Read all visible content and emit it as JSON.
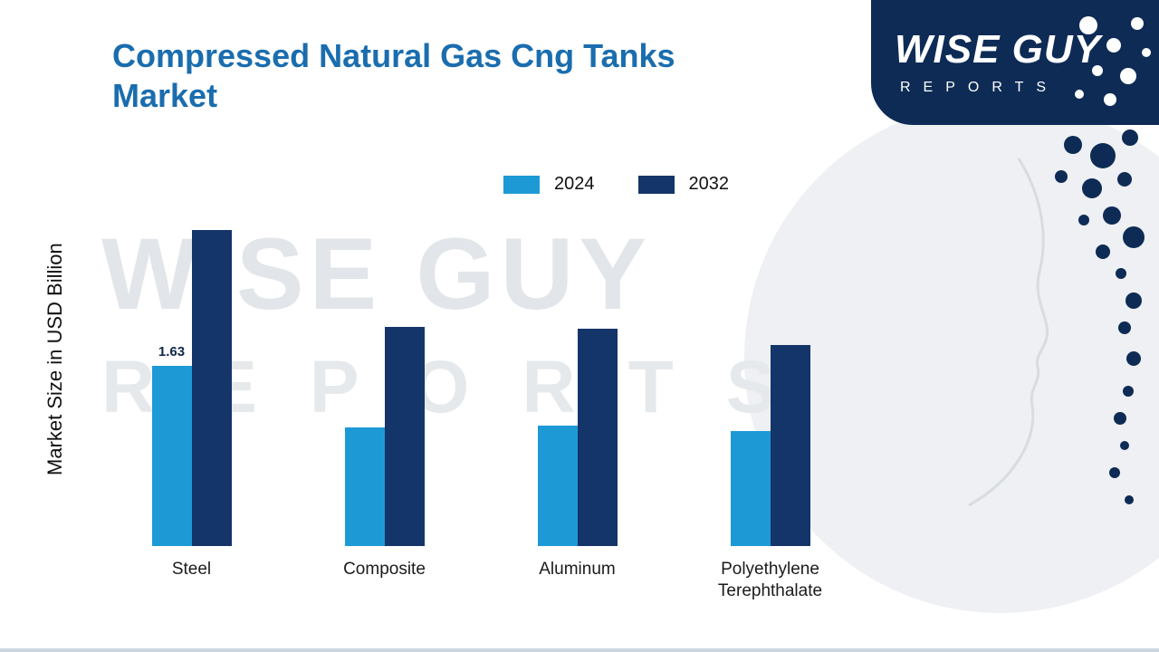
{
  "page_title": "Compressed Natural Gas Cng Tanks Market",
  "logo": {
    "line1": "WISE GUY",
    "line2": "REPORTS"
  },
  "watermark": {
    "line1": "WISE GUY",
    "line2": "REPORTS"
  },
  "colors": {
    "title": "#1a6dae",
    "logo_background": "#0d2b55",
    "series_2024": "#1d9ad6",
    "series_2032": "#14356a",
    "background_circle": "#eef0f3"
  },
  "chart_data": {
    "type": "bar",
    "title": "Compressed Natural Gas Cng Tanks Market",
    "categories": [
      "Steel",
      "Composite",
      "Aluminum",
      "Polyethylene Terephthalate"
    ],
    "series": [
      {
        "name": "2024",
        "color": "#1d9ad6",
        "values": [
          1.63,
          1.07,
          1.09,
          1.04
        ]
      },
      {
        "name": "2032",
        "color": "#14356a",
        "values": [
          2.86,
          1.98,
          1.97,
          1.82
        ]
      }
    ],
    "xlabel": "",
    "ylabel": "Market Size in USD Billion",
    "ylim": [
      0,
      3
    ],
    "grid": false,
    "legend_position": "top",
    "data_labels": [
      {
        "series_index": 0,
        "category_index": 0,
        "text": "1.63"
      }
    ]
  }
}
